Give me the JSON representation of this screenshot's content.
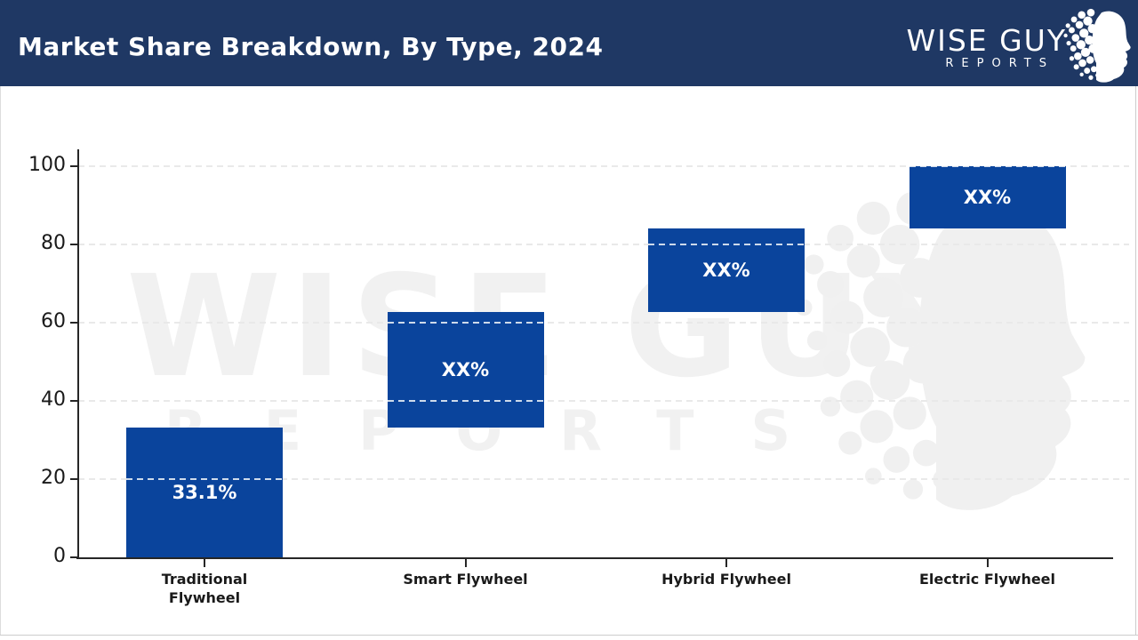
{
  "header": {
    "title": "Market Share Breakdown, By Type, 2024",
    "logo": {
      "wordmark": "WISE GUY",
      "subtext": "REPORTS"
    }
  },
  "watermark": {
    "wordmark": "WISE GUY",
    "subtext": "REPORTS"
  },
  "colors": {
    "header_bg": "#1f3864",
    "bar": "#0a449c",
    "bar_label": "#ffffff",
    "axis": "#262626",
    "gridline": "#e9e9e9",
    "watermark": "#f1f1f1"
  },
  "chart_data": {
    "type": "bar",
    "subtype": "waterfall",
    "title": "Market Share Breakdown, By Type, 2024",
    "categories": [
      "Traditional\nFlywheel",
      "Smart Flywheel",
      "Hybrid Flywheel",
      "Electric Flywheel"
    ],
    "segments": [
      {
        "category": "Traditional Flywheel",
        "start": 0,
        "end": 33.1,
        "value": 33.1,
        "label": "33.1%"
      },
      {
        "category": "Smart Flywheel",
        "start": 33.1,
        "end": 62.7,
        "value": 29.6,
        "label": "XX%"
      },
      {
        "category": "Hybrid Flywheel",
        "start": 62.7,
        "end": 84.1,
        "value": 21.4,
        "label": "XX%"
      },
      {
        "category": "Electric Flywheel",
        "start": 84.1,
        "end": 100,
        "value": 15.9,
        "label": "XX%"
      }
    ],
    "xlabel": "",
    "ylabel": "",
    "ylim": [
      0,
      100
    ],
    "yticks": [
      0,
      20,
      40,
      60,
      80,
      100
    ],
    "grid": "horizontal-dashed",
    "legend": "none"
  }
}
